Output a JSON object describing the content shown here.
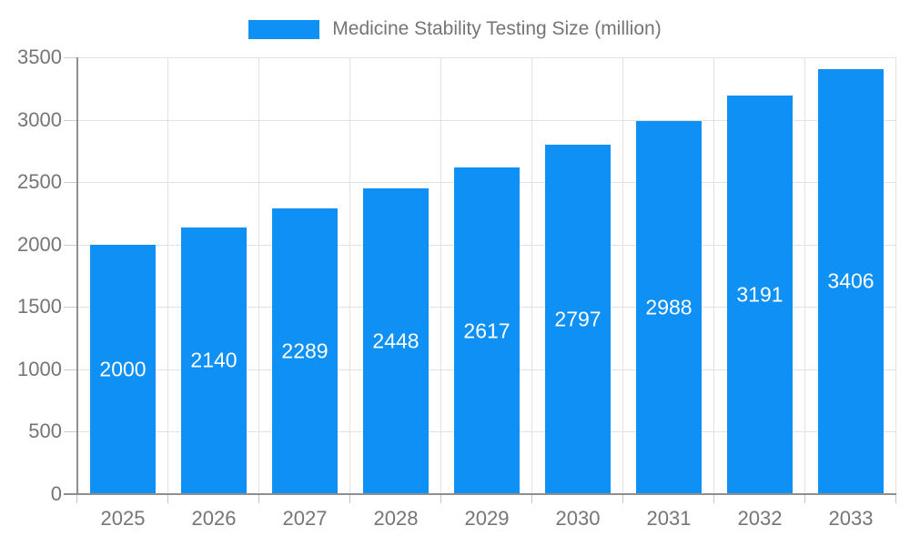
{
  "colors": {
    "bar": "#0e90f5",
    "bar_label": "#ffffff",
    "axis_line": "#8f8f8f",
    "gridline": "#e2e2e2",
    "tick_text": "#757575",
    "background": "#ffffff"
  },
  "chart_data": {
    "type": "bar",
    "title": "",
    "legend": "Medicine Stability Testing Size (million)",
    "legend_position": "top",
    "categories": [
      "2025",
      "2026",
      "2027",
      "2028",
      "2029",
      "2030",
      "2031",
      "2032",
      "2033"
    ],
    "values": [
      2000,
      2140,
      2289,
      2448,
      2617,
      2797,
      2988,
      3191,
      3406
    ],
    "value_labels": [
      "2000",
      "2140",
      "2289",
      "2448",
      "2617",
      "2797",
      "2988",
      "3191",
      "3406"
    ],
    "xlabel": "",
    "ylabel": "",
    "ylim": [
      0,
      3500
    ],
    "yticks": [
      0,
      500,
      1000,
      1500,
      2000,
      2500,
      3000,
      3500
    ],
    "ytick_labels": [
      "0",
      "500",
      "1000",
      "1500",
      "2000",
      "2500",
      "3000",
      "3500"
    ],
    "grid": "on",
    "series_color": "#0e90f5"
  }
}
